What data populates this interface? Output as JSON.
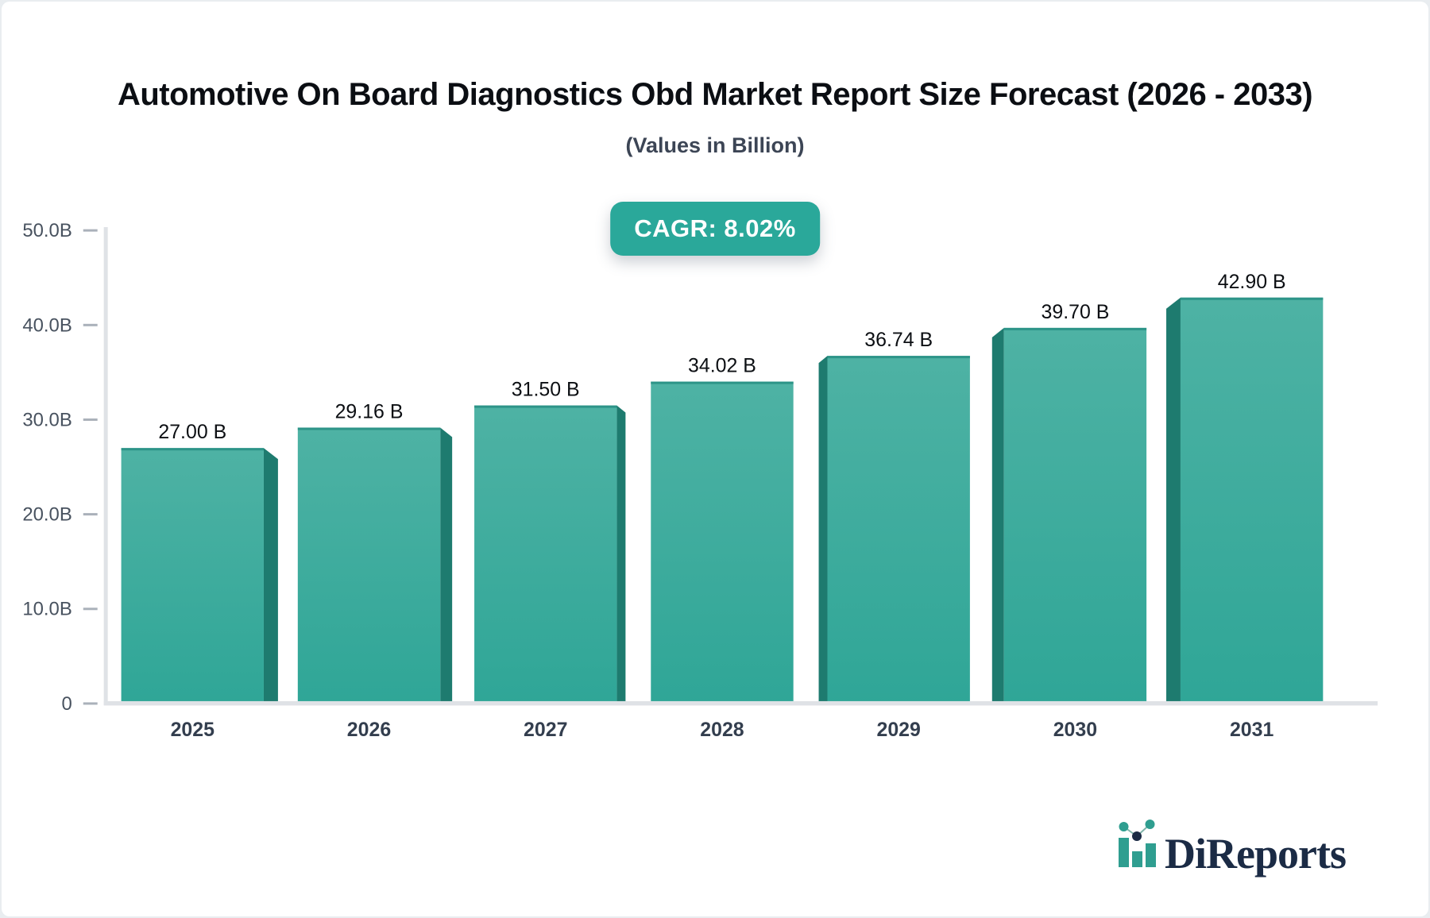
{
  "chart_data": {
    "type": "bar",
    "title": "Automotive On Board Diagnostics Obd Market Report Size Forecast (2026 - 2033)",
    "subtitle": "(Values in Billion)",
    "cagr_label": "CAGR: 8.02%",
    "categories": [
      "2025",
      "2026",
      "2027",
      "2028",
      "2029",
      "2030",
      "2031"
    ],
    "values": [
      27.0,
      29.16,
      31.5,
      34.02,
      36.74,
      39.7,
      42.9
    ],
    "value_labels": [
      "27.00 B",
      "29.16 B",
      "31.50 B",
      "34.02 B",
      "36.74 B",
      "39.70 B",
      "42.90 B"
    ],
    "ylim": [
      0,
      50
    ],
    "ytick_values": [
      50,
      40,
      30,
      20,
      10,
      0
    ],
    "ytick_labels": [
      "50.0B",
      "40.0B",
      "30.0B",
      "20.0B",
      "10.0B",
      "0"
    ],
    "grid": "off",
    "legend": "none",
    "bar_style": "3d-beveled",
    "colors": {
      "bar_top": "#4eb2a4",
      "bar_bottom": "#2fa697",
      "bar_side": "#1e7b6f",
      "bar_edge": "#2d9488",
      "badge_bg": "#2aa89a",
      "axis_line": "#dfe2e6",
      "tick_dash": "#aab1ba",
      "ytick_text": "#48525f",
      "xtick_text": "#333e4e",
      "value_text": "#0c0f13",
      "title_text": "#0b0e13",
      "subtitle_text": "#3c4555"
    }
  },
  "footer": {
    "brand": "DiReports",
    "brand_navy": "#1b2b45",
    "brand_teal": "#2f9e90"
  }
}
